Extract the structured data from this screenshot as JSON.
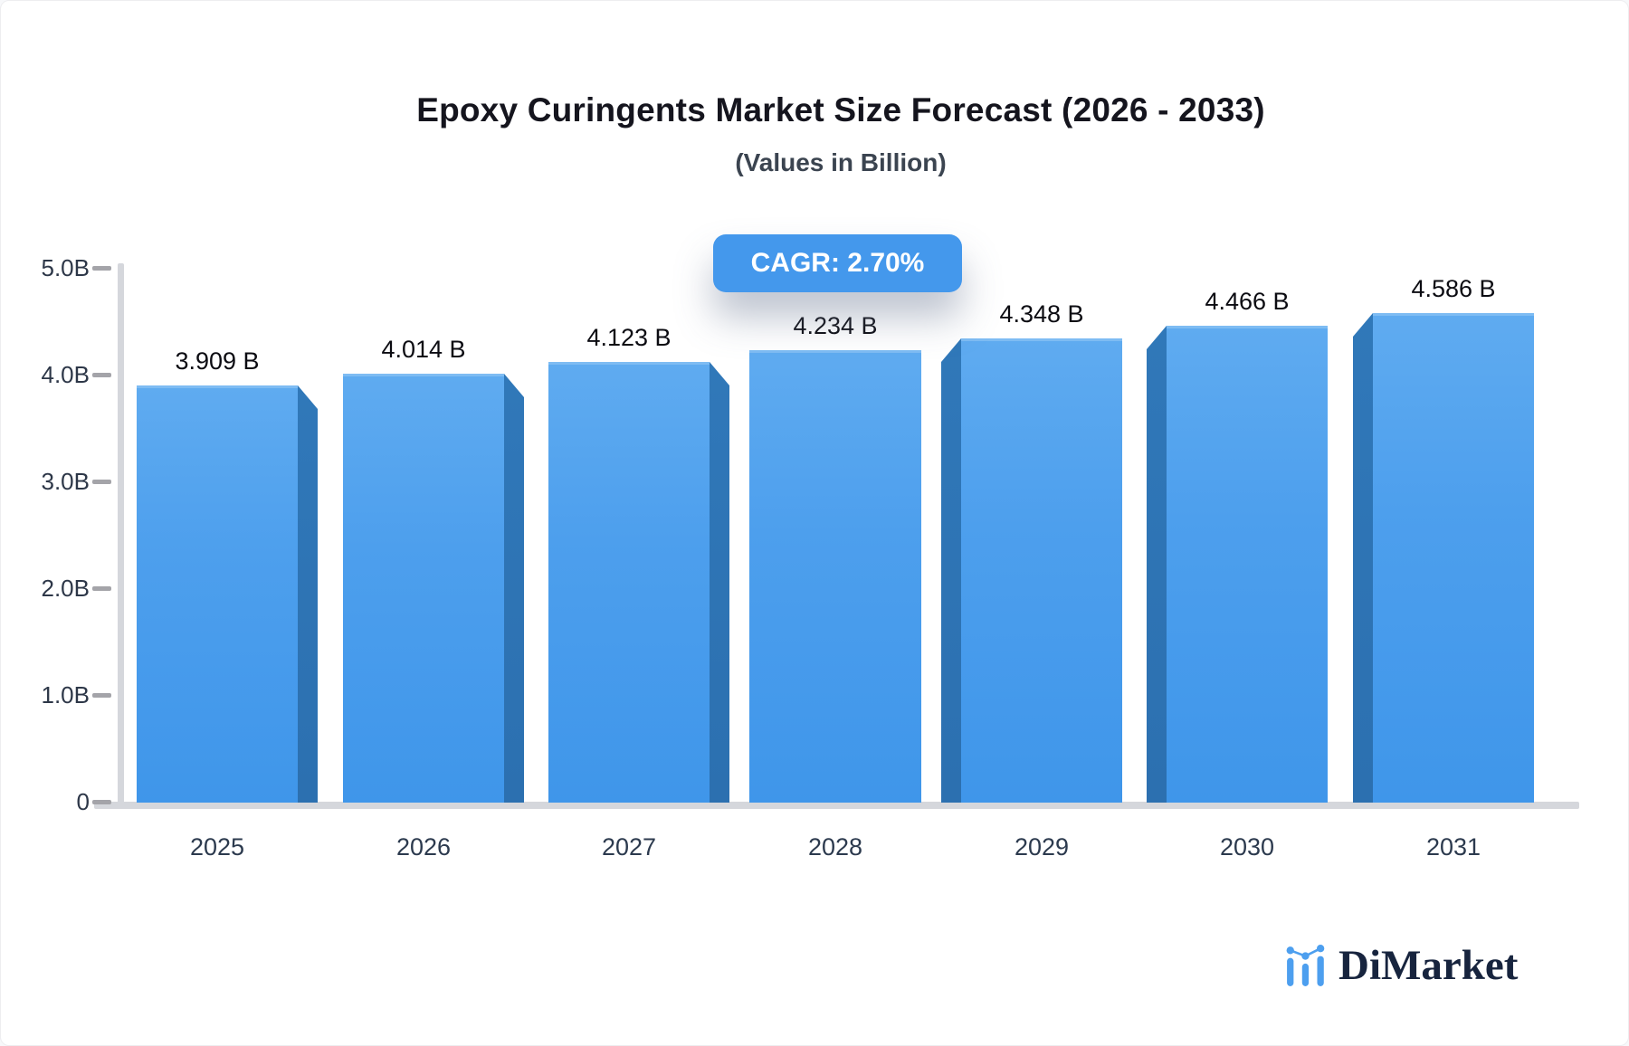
{
  "header": {
    "title": "Epoxy Curingents Market Size Forecast (2026 - 2033)",
    "subtitle": "(Values in Billion)",
    "cagr_label": "CAGR: 2.70%"
  },
  "chart_data": {
    "type": "bar",
    "title": "Epoxy Curingents Market Size Forecast (2026 - 2033)",
    "subtitle": "(Values in Billion)",
    "cagr": "2.70%",
    "unit": "Billion",
    "categories": [
      "2025",
      "2026",
      "2027",
      "2028",
      "2029",
      "2030",
      "2031"
    ],
    "values": [
      3.909,
      4.014,
      4.123,
      4.234,
      4.348,
      4.466,
      4.586
    ],
    "value_labels": [
      "3.909 B",
      "4.014 B",
      "4.123 B",
      "4.234 B",
      "4.348 B",
      "4.466 B",
      "4.586 B"
    ],
    "xlabel": "",
    "ylabel": "",
    "ylim": [
      0,
      5
    ],
    "yticks": [
      {
        "label": "5.0B",
        "value": 5
      },
      {
        "label": "4.0B",
        "value": 4
      },
      {
        "label": "3.0B",
        "value": 3
      },
      {
        "label": "2.0B",
        "value": 2
      },
      {
        "label": "1.0B",
        "value": 1
      },
      {
        "label": "0",
        "value": 0
      }
    ],
    "grid": false,
    "legend": "none",
    "bar_style": "3d-extruded-blue"
  },
  "branding": {
    "name": "DiMarket",
    "icon": "mini-bar-chart-logo-icon"
  },
  "colors": {
    "bar_face": "#4d9fed",
    "bar_side": "#2e74b5",
    "badge_bg": "#4498ec",
    "badge_text": "#ffffff",
    "axis_line": "#d5d7dc",
    "tick_dash": "#a4a4a9",
    "title_text": "#15151e",
    "subtitle_text": "#3b4450",
    "axis_label_text": "#2d3748",
    "value_label_text": "#0c0c12",
    "logo_text": "#17243e",
    "logo_icon": "#4d9fef"
  }
}
